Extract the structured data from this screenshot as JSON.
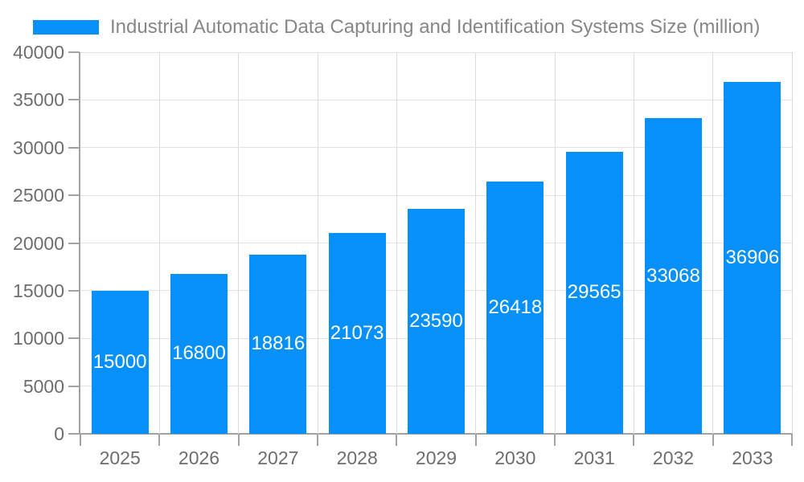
{
  "legend": {
    "label": "Industrial Automatic Data Capturing and Identification Systems Size (million)"
  },
  "colors": {
    "bar": "#0791f8",
    "grid_h": "#e2e2e2",
    "grid_v": "#dcdcdc",
    "axis": "#a2a2a2",
    "tick_text": "#6e6e6e",
    "title_text": "#878787",
    "value_text": "#ffffff"
  },
  "chart_data": {
    "type": "bar",
    "title": "Industrial Automatic Data Capturing and Identification Systems Size (million)",
    "categories": [
      "2025",
      "2026",
      "2027",
      "2028",
      "2029",
      "2030",
      "2031",
      "2032",
      "2033"
    ],
    "series": [
      {
        "name": "Industrial Automatic Data Capturing and Identification Systems Size (million)",
        "values": [
          15000,
          16800,
          18816,
          21073,
          23590,
          26418,
          29565,
          33068,
          36906
        ]
      }
    ],
    "value_labels": [
      "15000",
      "16800",
      "18816",
      "21073",
      "23590",
      "26418",
      "29565",
      "33068",
      "36906"
    ],
    "xlabel": "",
    "ylabel": "",
    "ylim": [
      0,
      40000
    ],
    "ytick_step": 5000,
    "ytick_labels": [
      "0",
      "5000",
      "10000",
      "15000",
      "20000",
      "25000",
      "30000",
      "35000",
      "40000"
    ],
    "grid": true,
    "legend_position": "top-left",
    "value_label_position": "inside-center"
  }
}
